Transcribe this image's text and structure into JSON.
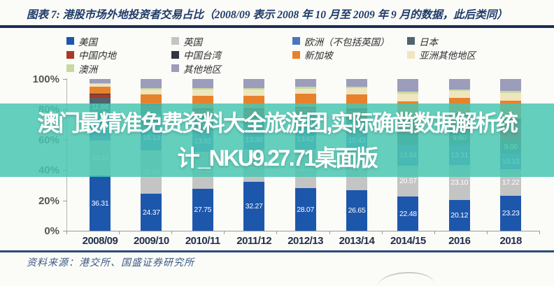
{
  "title": "图表 7: 港股市场外地投资者交易占比（2008/09 表示 2008 年 10 月至 2009 年 9 月的数据，此后类同）",
  "overlay_banner": {
    "line1": "澳门最精准免费资料大全旅游团,实际确凿数据解析统",
    "line2": "计_NKU9.27.71桌面版",
    "background_color": "#48C6B2",
    "text_color": "#FFFFFF"
  },
  "source_note": "资料来源：港交所、国盛证券研究所",
  "axis": {
    "y_tick_labels": [
      "100%",
      "80%",
      "60%",
      "40%",
      "20%",
      "0%"
    ],
    "x_tick_labels": [
      "2008/09",
      "2009/10",
      "2010/11",
      "2011/12",
      "2012/13",
      "2013/14",
      "2014/15",
      "2016",
      "2018"
    ]
  },
  "chart_data": {
    "type": "bar",
    "stacked": true,
    "title": "港股市场外地投资者交易占比",
    "categories": [
      "2008/09",
      "2009/10",
      "2010/11",
      "2011/12",
      "2012/13",
      "2013/14",
      "2014/15",
      "2016",
      "2018"
    ],
    "ylim": [
      0,
      100
    ],
    "ylabel": "",
    "xlabel": "",
    "grid": false,
    "legend_position": "top",
    "series": [
      {
        "name": "美国",
        "color": "#1D57AC",
        "labeled": true,
        "values": [
          36.31,
          24.37,
          27.75,
          32.27,
          28.07,
          26.65,
          22.48,
          20.12,
          23.23
        ]
      },
      {
        "name": "英国",
        "color": "#C4C4C4",
        "labeled": true,
        "values": [
          23.35,
          28.68,
          24.32,
          21.1,
          25.6,
          27.68,
          20.57,
          23.1,
          17.22
        ]
      },
      {
        "name": "欧洲（不包括英国）",
        "color": "#4A76BE",
        "labeled": true,
        "values": [
          16.15,
          16.13,
          13.91,
          13.3,
          13.62,
          10.42,
          13.64,
          13.31,
          10.15
        ]
      },
      {
        "name": "日本",
        "color": "#4F6470",
        "labeled": true,
        "values": [
          11.86,
          10.55,
          9.92,
          8.4,
          8.49,
          8.5,
          7.0,
          9.6,
          9.0
        ]
      },
      {
        "name": "中国内地",
        "color": "#A93A28",
        "labeled": false,
        "values": [
          2.2,
          3.0,
          4.0,
          4.5,
          5.0,
          6.0,
          8.0,
          10.0,
          12.0
        ]
      },
      {
        "name": "中国台湾",
        "color": "#30363F",
        "labeled": false,
        "values": [
          0.5,
          0.8,
          1.0,
          1.0,
          1.0,
          1.2,
          1.5,
          1.5,
          2.0
        ]
      },
      {
        "name": "新加坡",
        "color": "#E8812C",
        "labeled": false,
        "values": [
          4.5,
          6.5,
          8.0,
          8.5,
          8.5,
          9.5,
          12.0,
          10.0,
          12.0
        ]
      },
      {
        "name": "亚洲其他地区",
        "color": "#EFE6BE",
        "labeled": false,
        "values": [
          1.8,
          3.0,
          4.0,
          4.0,
          3.5,
          4.0,
          5.0,
          4.5,
          5.0
        ]
      },
      {
        "name": "澳洲",
        "color": "#C8D9A2",
        "labeled": false,
        "values": [
          0.5,
          1.0,
          1.0,
          1.0,
          1.0,
          1.05,
          1.5,
          1.2,
          1.5
        ]
      },
      {
        "name": "其他地区",
        "color": "#9B9DBA",
        "labeled": false,
        "values": [
          2.83,
          5.97,
          6.1,
          5.93,
          5.22,
          5.0,
          8.31,
          6.67,
          7.9
        ]
      }
    ]
  }
}
